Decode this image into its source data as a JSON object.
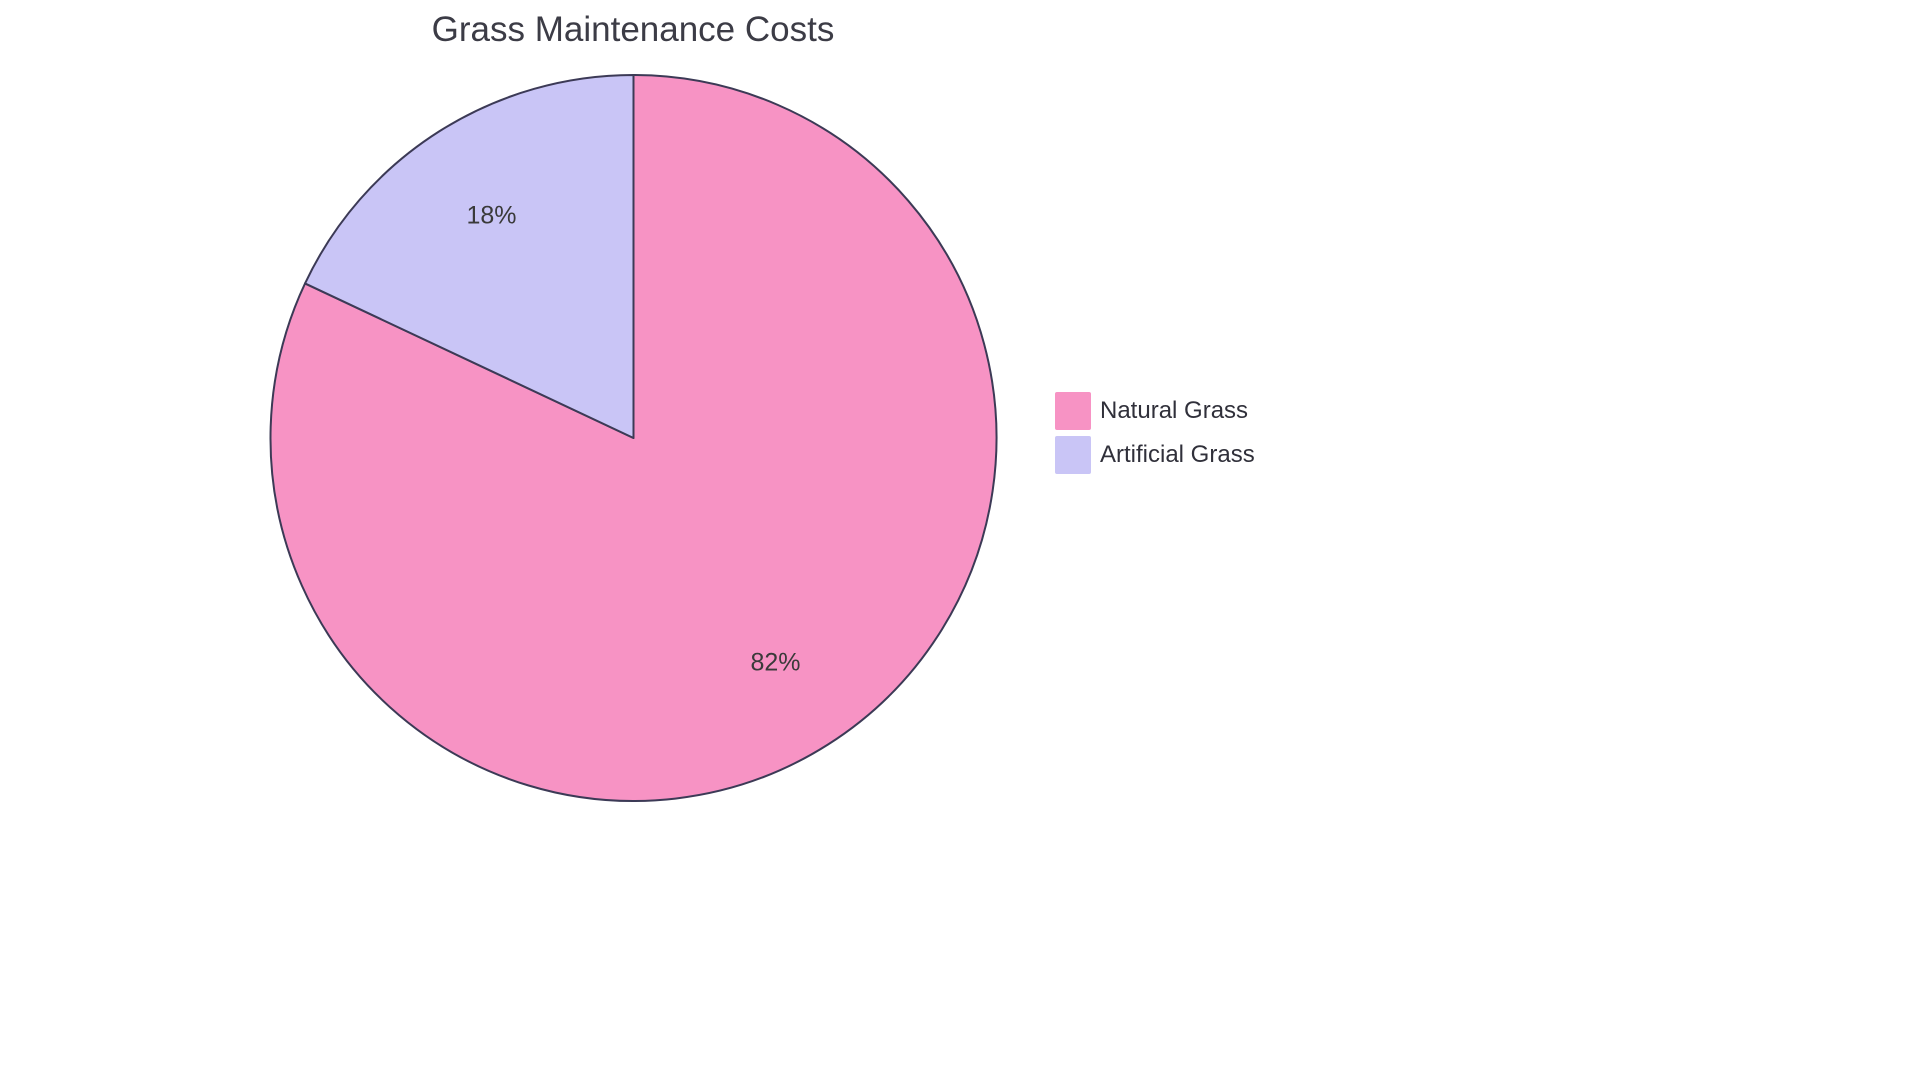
{
  "chart_data": {
    "type": "pie",
    "title": "Grass Maintenance Costs",
    "labels": [
      "Natural Grass",
      "Artificial Grass"
    ],
    "values": [
      82,
      18
    ],
    "slice_labels": [
      "82%",
      "18%"
    ],
    "colors": [
      "#F793C4",
      "#C9C5F6"
    ],
    "stroke_color": "#3c3a56",
    "start_angle_deg": 0,
    "direction": "clockwise",
    "legend_position": "right",
    "legend_entries": [
      {
        "label": "Natural Grass",
        "color": "#F793C4"
      },
      {
        "label": "Artificial Grass",
        "color": "#C9C5F6"
      }
    ]
  },
  "layout": {
    "background": "#ffffff"
  }
}
